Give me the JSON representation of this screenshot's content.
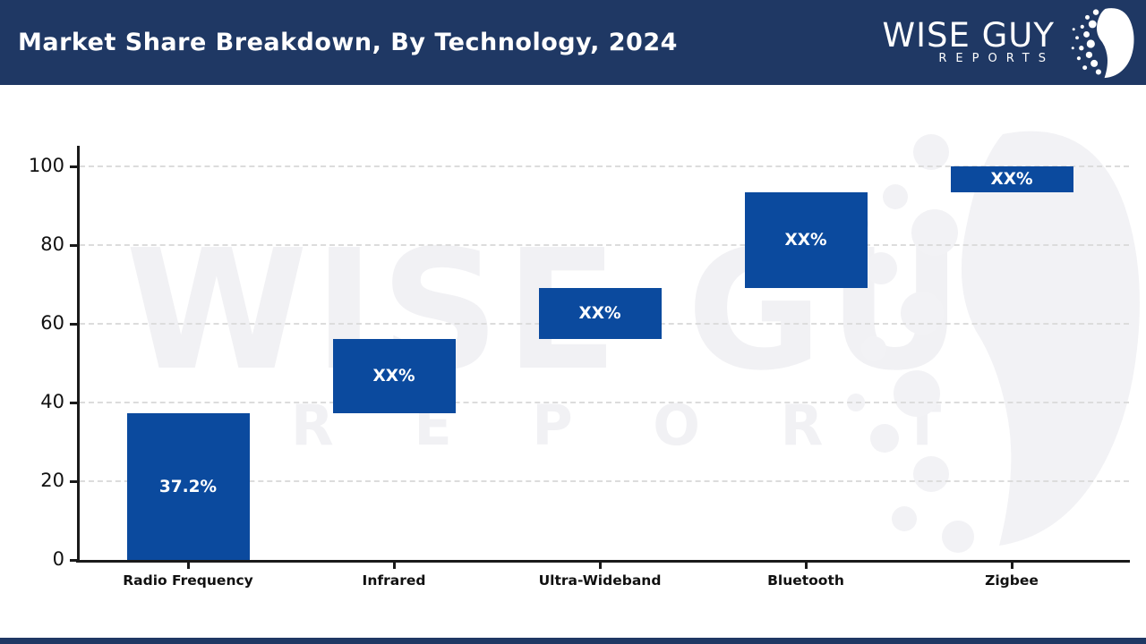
{
  "header": {
    "title": "Market Share Breakdown, By Technology, 2024",
    "logo": {
      "line1": "WISE GUY",
      "line2": "REPORTS"
    }
  },
  "watermark": {
    "line1": "WISE GUY",
    "line2": "R E P O R T S"
  },
  "chart_data": {
    "type": "bar",
    "subtype": "waterfall",
    "title": "Market Share Breakdown, By Technology, 2024",
    "categories": [
      "Radio Frequency",
      "Infrared",
      "Ultra-Wideband",
      "Bluetooth",
      "Zigbee"
    ],
    "series": [
      {
        "name": "Market share (%)",
        "segments": [
          [
            0,
            37.2
          ],
          [
            37.2,
            56.2
          ],
          [
            56.2,
            69.0
          ],
          [
            69.0,
            93.5
          ],
          [
            93.5,
            100
          ]
        ]
      }
    ],
    "bar_labels": [
      "37.2%",
      "XX%",
      "XX%",
      "XX%",
      "XX%"
    ],
    "xlabel": "",
    "ylabel": "",
    "yticks": [
      0,
      20,
      40,
      60,
      80,
      100
    ],
    "ylim": [
      0,
      105
    ],
    "grid": "horizontal-dashed",
    "legend": "none",
    "bar_color": "#0b4a9e"
  }
}
